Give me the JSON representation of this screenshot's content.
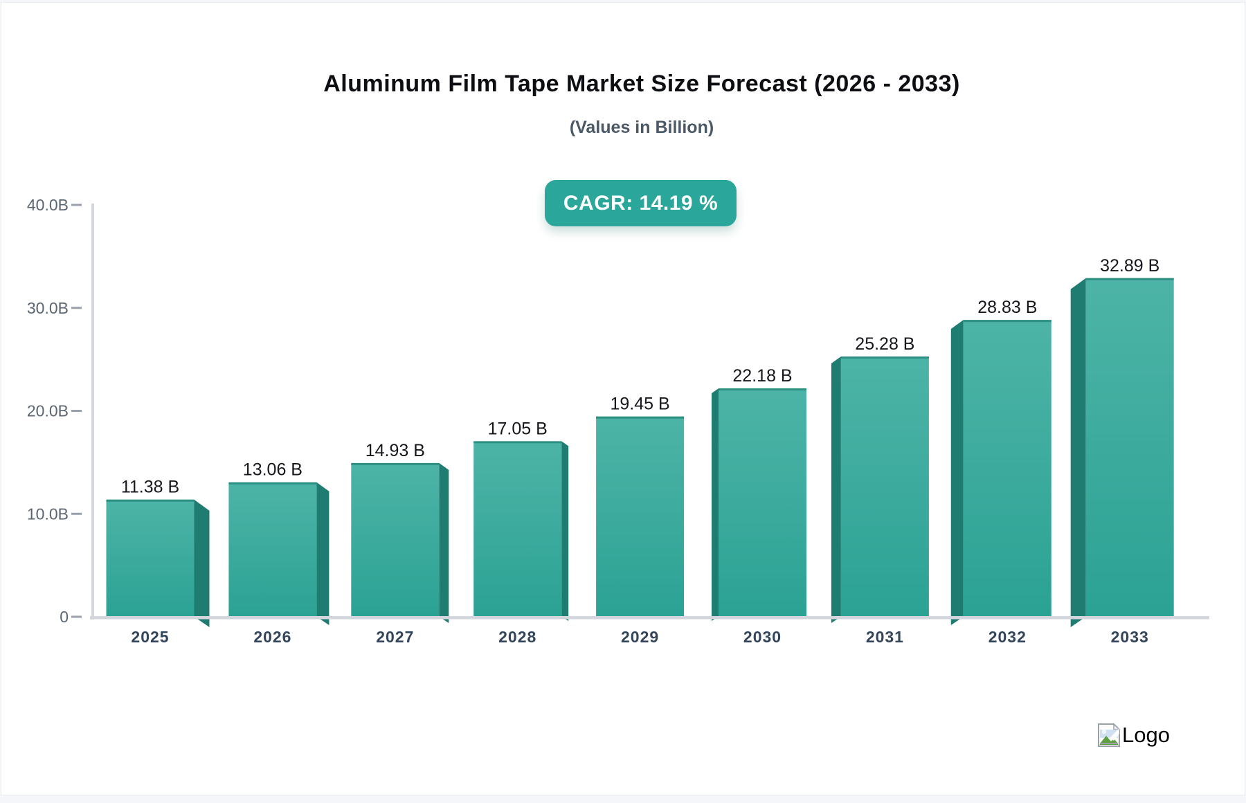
{
  "page": {
    "title": "Aluminum Film Tape Market Size Forecast (2026 - 2033)",
    "subtitle": "(Values in Billion)",
    "cagr_badge": "CAGR: 14.19 %",
    "logo_text": "Logo"
  },
  "colors": {
    "badge_bg": "#2BA69A",
    "bar_face_top": "#4DB4A7",
    "bar_face_bottom": "#2BA294",
    "bar_side": "#1F7C71",
    "bar_top_edge": "#2D9083",
    "axis_line": "#D3D6DC",
    "tick": "#99A1AC",
    "y_label": "#5C6671",
    "x_label": "#32455A",
    "value_label": "#15171C"
  },
  "chart_data": {
    "type": "bar",
    "title": "Aluminum Film Tape Market Size Forecast (2026 - 2033)",
    "subtitle": "(Values in Billion)",
    "annotation": "CAGR: 14.19 %",
    "categories": [
      "2025",
      "2026",
      "2027",
      "2028",
      "2029",
      "2030",
      "2031",
      "2032",
      "2033"
    ],
    "values": [
      11.38,
      13.06,
      14.93,
      17.05,
      19.45,
      22.18,
      25.28,
      28.83,
      32.89
    ],
    "value_labels": [
      "11.38 B",
      "13.06 B",
      "14.93 B",
      "17.05 B",
      "19.45 B",
      "22.18 B",
      "25.28 B",
      "28.83 B",
      "32.89 B"
    ],
    "xlabel": "",
    "ylabel": "",
    "ylim": [
      0,
      40
    ],
    "y_ticks": [
      {
        "value": 0,
        "label": "0"
      },
      {
        "value": 10,
        "label": "10.0B"
      },
      {
        "value": 20,
        "label": "20.0B"
      },
      {
        "value": 30,
        "label": "30.0B"
      },
      {
        "value": 40,
        "label": "40.0B"
      }
    ],
    "grid": false,
    "legend": false,
    "style": "3d-perspective-bars, center vanishing point"
  }
}
